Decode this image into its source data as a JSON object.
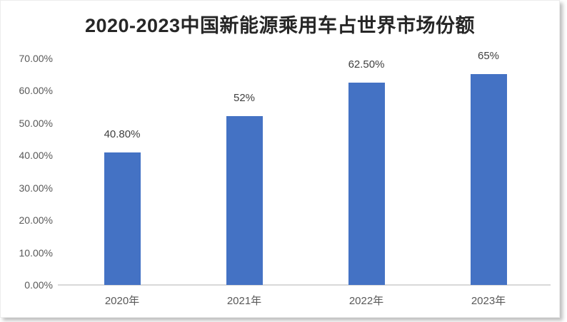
{
  "chart_data": {
    "type": "bar",
    "title": "2020-2023中国新能源乘用车占世界市场份额",
    "categories": [
      "2020年",
      "2021年",
      "2022年",
      "2023年"
    ],
    "values": [
      40.8,
      52,
      62.5,
      65
    ],
    "data_labels": [
      "40.80%",
      "52%",
      "62.50%",
      "65%"
    ],
    "y_ticks": [
      "0.00%",
      "10.00%",
      "20.00%",
      "30.00%",
      "40.00%",
      "50.00%",
      "60.00%",
      "70.00%"
    ],
    "ylim": [
      0,
      70
    ],
    "xlabel": "",
    "ylabel": "",
    "grid": false,
    "legend": false,
    "colors": {
      "bar": "#4472C4",
      "axis_line": "#D9D9D9",
      "tick_label": "#595959",
      "data_label": "#404040",
      "title": "#262626",
      "background": "#FFFFFF"
    }
  }
}
